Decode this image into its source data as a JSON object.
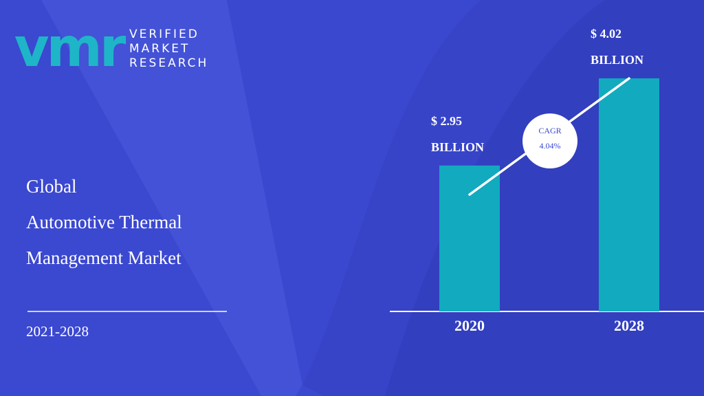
{
  "header": {
    "logo": "vmr",
    "brand": [
      "VERIFIED",
      "MARKET",
      "RESEARCH"
    ],
    "title_lines": [
      "Global",
      "Automotive Thermal",
      "Management Market"
    ],
    "period": "2021-2028"
  },
  "chart_data": {
    "type": "bar",
    "categories": [
      "2020",
      "2028"
    ],
    "values": [
      2.95,
      4.02
    ],
    "value_labels": [
      "$ 2.95 BILLION",
      "$ 4.02 BILLION"
    ],
    "color": "#12aabf",
    "ylim": [
      1.16,
      4.5
    ],
    "annotation": {
      "label": "CAGR",
      "value": "4.04%"
    }
  }
}
